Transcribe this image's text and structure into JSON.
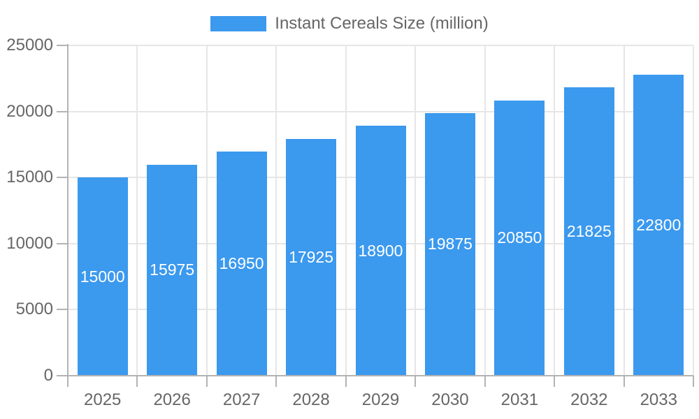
{
  "chart_data": {
    "type": "bar",
    "title": "",
    "legend": "Instant Cereals Size (million)",
    "legend_position": "top",
    "categories": [
      "2025",
      "2026",
      "2027",
      "2028",
      "2029",
      "2030",
      "2031",
      "2032",
      "2033"
    ],
    "values": [
      15000,
      15975,
      16950,
      17925,
      18900,
      19875,
      20850,
      21825,
      22800
    ],
    "bar_value_labels": [
      "15000",
      "15975",
      "16950",
      "17925",
      "18900",
      "19875",
      "20850",
      "21825",
      "22800"
    ],
    "ylim": [
      0,
      25000
    ],
    "yticks": [
      0,
      5000,
      10000,
      15000,
      20000,
      25000
    ],
    "ytick_labels": [
      "0",
      "5000",
      "10000",
      "15000",
      "20000",
      "25000"
    ],
    "grid": true,
    "xlabel": "",
    "ylabel": ""
  },
  "colors": {
    "bar": "#3b99ee",
    "bar_label": "#ffffff",
    "axis": "#b3b3b3",
    "grid": "#e6e6e6",
    "text": "#666666",
    "background": "#ffffff"
  }
}
